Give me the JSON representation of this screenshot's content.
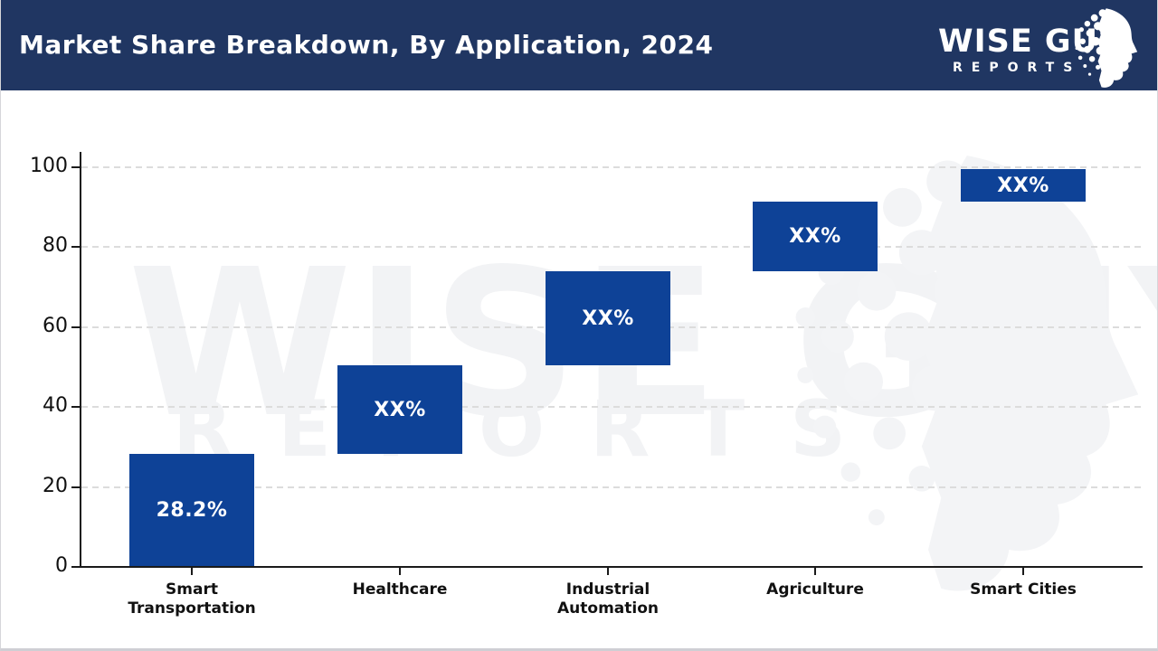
{
  "header": {
    "title": "Market Share Breakdown, By Application, 2024",
    "logo": {
      "line1": "WISE GUY",
      "line2": "REPORTS"
    }
  },
  "watermark": {
    "line1": "WISE GUY",
    "line2": "REPORTS"
  },
  "colors": {
    "header_bg": "#203662",
    "bar": "#0e4297",
    "bar_label": "#ffffff",
    "axis": "#1a1a1a",
    "gridline": "#dcdcdc",
    "watermark": "#f2f3f5"
  },
  "chart_data": {
    "type": "bar",
    "subtype": "waterfall",
    "title": "Market Share Breakdown, By Application, 2024",
    "xlabel": "",
    "ylabel": "",
    "ylim": [
      0,
      105
    ],
    "yticks": [
      "0",
      "20",
      "40",
      "60",
      "80",
      "100"
    ],
    "grid": "horizontal-dashed",
    "legend": "none",
    "categories": [
      "Smart Transportation",
      "Healthcare",
      "Industrial Automation",
      "Agriculture",
      "Smart Cities"
    ],
    "segments": [
      {
        "category": "Smart Transportation",
        "lines": [
          "Smart",
          "Transportation"
        ],
        "start": 0,
        "end": 28.2,
        "value": 28.2,
        "label": "28.2%"
      },
      {
        "category": "Healthcare",
        "lines": [
          "Healthcare"
        ],
        "start": 28.2,
        "end": 50.4,
        "value": 22.2,
        "label": "XX%"
      },
      {
        "category": "Industrial Automation",
        "lines": [
          "Industrial",
          "Automation"
        ],
        "start": 50.4,
        "end": 74.0,
        "value": 23.6,
        "label": "XX%"
      },
      {
        "category": "Agriculture",
        "lines": [
          "Agriculture"
        ],
        "start": 74.0,
        "end": 91.3,
        "value": 17.3,
        "label": "XX%"
      },
      {
        "category": "Smart Cities",
        "lines": [
          "Smart Cities"
        ],
        "start": 91.3,
        "end": 99.5,
        "value": 8.2,
        "label": "XX%"
      }
    ]
  }
}
